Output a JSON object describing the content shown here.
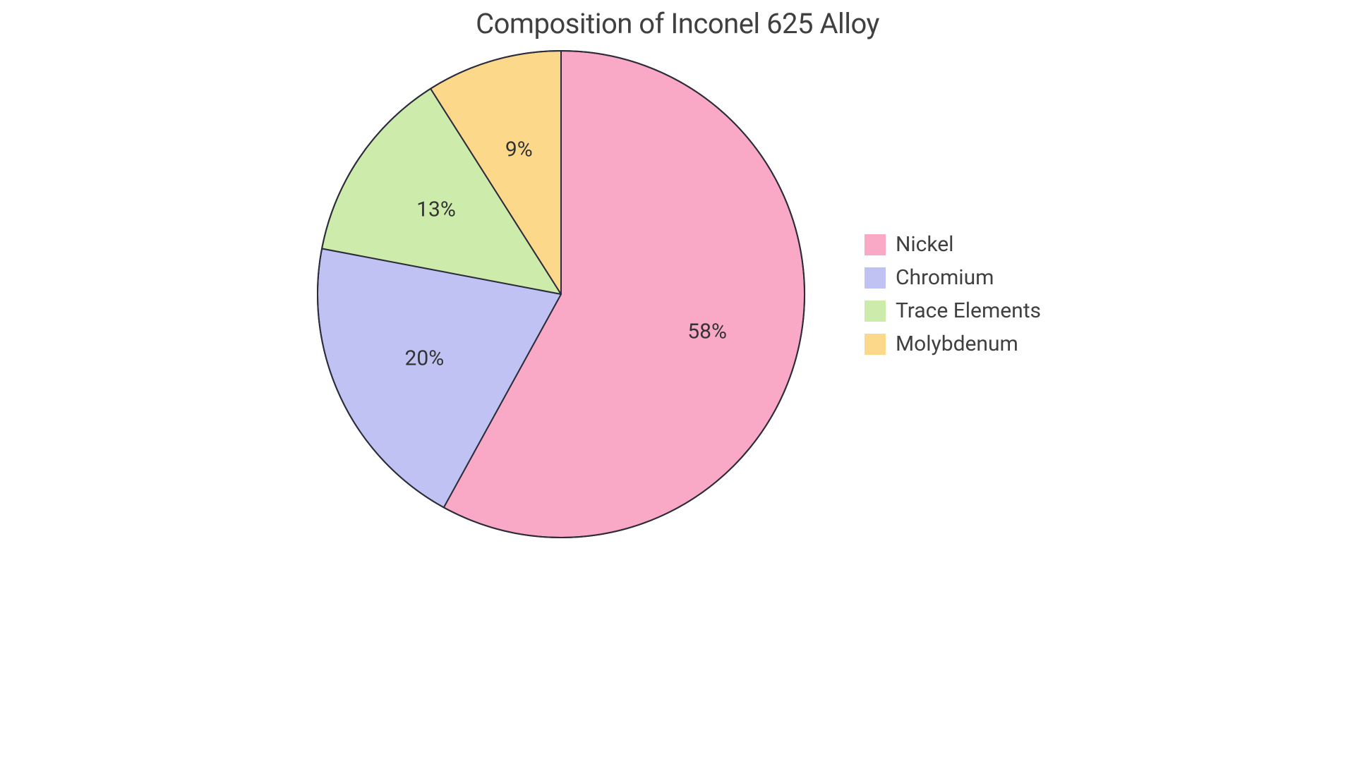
{
  "chart": {
    "type": "pie",
    "title": "Composition of Inconel 625 Alloy",
    "title_fontsize": 40,
    "title_color": "#404040",
    "background_color": "#ffffff",
    "stroke_color": "#2c2c3a",
    "stroke_width": 2,
    "label_fontsize": 30,
    "label_color": "#333333",
    "legend_fontsize": 30,
    "legend_swatch_size": 30,
    "radius": 345,
    "start_angle": 0,
    "slices": [
      {
        "name": "Nickel",
        "value": 58,
        "label": "58%",
        "color": "#f9a8c5"
      },
      {
        "name": "Chromium",
        "value": 20,
        "label": "20%",
        "color": "#bfc2f2"
      },
      {
        "name": "Trace Elements",
        "value": 13,
        "label": "13%",
        "color": "#cdebab"
      },
      {
        "name": "Molybdenum",
        "value": 9,
        "label": "9%",
        "color": "#fcd88a"
      }
    ],
    "legend_order": [
      "Nickel",
      "Chromium",
      "Trace Elements",
      "Molybdenum"
    ]
  }
}
